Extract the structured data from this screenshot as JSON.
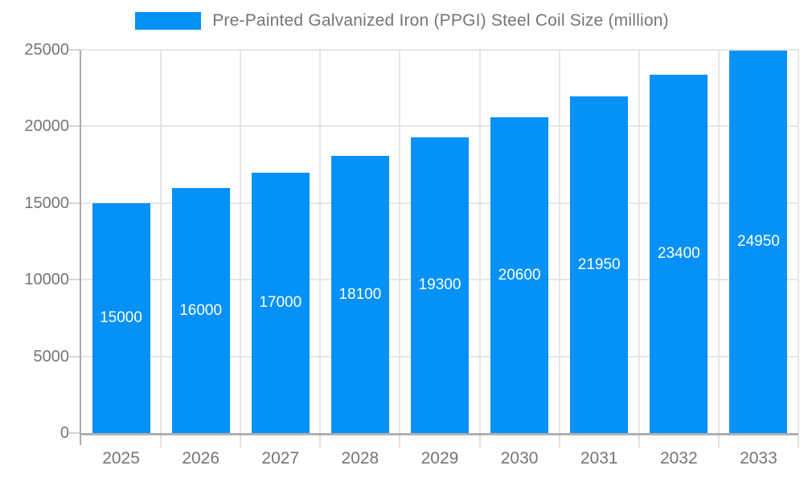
{
  "legend": {
    "label": "Pre-Painted Galvanized Iron (PPGI) Steel Coil Size (million)"
  },
  "chart_data": {
    "type": "bar",
    "title": "Pre-Painted Galvanized Iron (PPGI) Steel Coil Size (million)",
    "categories": [
      "2025",
      "2026",
      "2027",
      "2028",
      "2029",
      "2030",
      "2031",
      "2032",
      "2033"
    ],
    "values": [
      15000,
      16000,
      17000,
      18100,
      19300,
      20600,
      21950,
      23400,
      24950
    ],
    "value_labels": [
      "15000",
      "16000",
      "17000",
      "18100",
      "19300",
      "20600",
      "21950",
      "23400",
      "24950"
    ],
    "xlabel": "",
    "ylabel": "",
    "ylim": [
      0,
      25000
    ],
    "yticks": [
      0,
      5000,
      10000,
      15000,
      20000,
      25000
    ],
    "ytick_labels": [
      "0",
      "5000",
      "10000",
      "15000",
      "20000",
      "25000"
    ],
    "grid": true,
    "legend_position": "top",
    "colors": {
      "bar": "#0591f8",
      "value_label": "#ffffff",
      "axis": "#b0b0b0",
      "grid": "#e6e6e6",
      "tick_label": "#757575",
      "background": "#ffffff"
    }
  }
}
